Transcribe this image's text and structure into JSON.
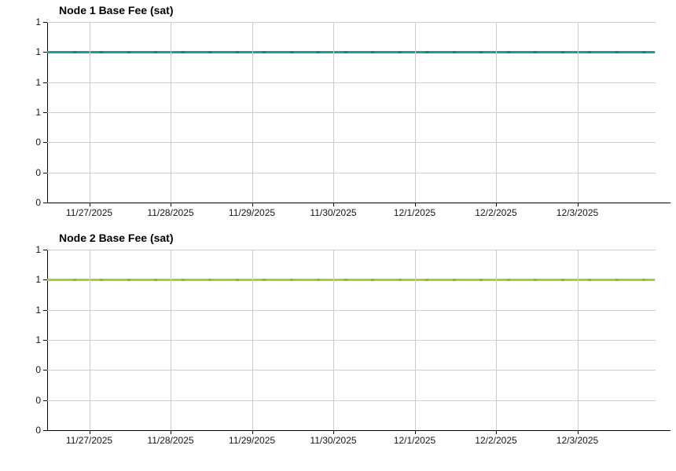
{
  "style": {
    "background": "#FFFFFF",
    "gridline_color": "#CDCDCD",
    "axis_color": "#000000",
    "label_color": "#161616",
    "title_color": "#000000"
  },
  "chart_data": [
    {
      "type": "line",
      "title": "Node 1 Base Fee (sat)",
      "x": [
        "11/27/2025",
        "11/28/2025",
        "11/29/2025",
        "11/30/2025",
        "12/1/2025",
        "12/2/2025",
        "12/3/2025"
      ],
      "series": [
        {
          "name": "Node 1 Base Fee",
          "values": [
            1,
            1,
            1,
            1,
            1,
            1,
            1
          ],
          "color": "#1B9A9F",
          "marker_color": "#0E8489"
        }
      ],
      "ylim": [
        0,
        1.2
      ],
      "y_ticks": [
        1.2,
        1.0,
        0.8,
        0.6,
        0.4,
        0.2,
        0.0
      ],
      "y_tick_labels": [
        "1",
        "1",
        "1",
        "1",
        "0",
        "0",
        "0"
      ],
      "grid": true,
      "legend": false
    },
    {
      "type": "line",
      "title": "Node 2 Base Fee (sat)",
      "x": [
        "11/27/2025",
        "11/28/2025",
        "11/29/2025",
        "11/30/2025",
        "12/1/2025",
        "12/2/2025",
        "12/3/2025"
      ],
      "series": [
        {
          "name": "Node 2 Base Fee",
          "values": [
            1,
            1,
            1,
            1,
            1,
            1,
            1
          ],
          "color": "#A0D03A",
          "marker_color": "#8ABB2E"
        }
      ],
      "ylim": [
        0,
        1.2
      ],
      "y_ticks": [
        1.2,
        1.0,
        0.8,
        0.6,
        0.4,
        0.2,
        0.0
      ],
      "y_tick_labels": [
        "1",
        "1",
        "1",
        "1",
        "0",
        "0",
        "0"
      ],
      "grid": true,
      "legend": false
    }
  ]
}
